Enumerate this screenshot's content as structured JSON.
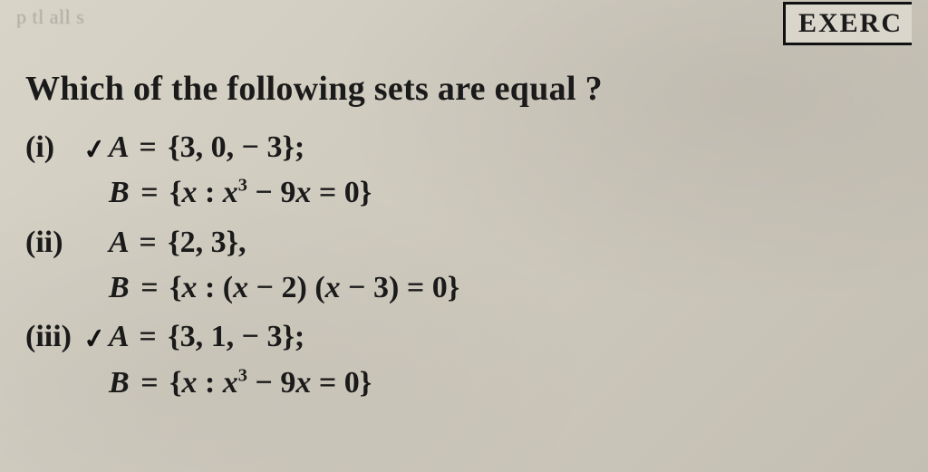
{
  "page": {
    "background_colors": [
      "#d8d4c8",
      "#cec9bd",
      "#c4bfb3"
    ],
    "text_color": "#1a1a1a",
    "font_family": "Times New Roman, serif"
  },
  "faint_top_text": "p tl all s",
  "header_box": {
    "text": "EXERC",
    "border_color": "#111111",
    "font_weight": 700
  },
  "question": "Which of the following sets are equal ?",
  "items": [
    {
      "roman": "(i)",
      "checked": true,
      "line1_prefix": "A",
      "line1_eq": "=",
      "line1_set": "{3, 0, − 3}",
      "line1_terminator": ";",
      "line2_prefix": "B",
      "line2_eq": "=",
      "line2_set_open": "{",
      "line2_var": "x",
      "line2_colon": " : ",
      "line2_expr_left": "x",
      "line2_sup": "3",
      "line2_expr_mid": " − 9",
      "line2_expr_var2": "x",
      "line2_expr_eq": " = 0",
      "line2_set_close": "}"
    },
    {
      "roman": "(ii)",
      "checked": false,
      "line1_prefix": "A",
      "line1_eq": "=",
      "line1_set": "{2, 3}",
      "line1_terminator": ",",
      "line2_prefix": "B",
      "line2_eq": "=",
      "line2_set_open": "{",
      "line2_var": "x",
      "line2_colon": " : (",
      "line2_expr_left": "x",
      "line2_sup": "",
      "line2_expr_mid": " − 2) (",
      "line2_expr_var2": "x",
      "line2_expr_eq": " − 3) = 0",
      "line2_set_close": "}"
    },
    {
      "roman": "(iii)",
      "checked": true,
      "line1_prefix": "A",
      "line1_eq": "=",
      "line1_set": "{3, 1, − 3}",
      "line1_terminator": ";",
      "line2_prefix": "B",
      "line2_eq": "=",
      "line2_set_open": "{",
      "line2_var": "x",
      "line2_colon": " : ",
      "line2_expr_left": "x",
      "line2_sup": "3",
      "line2_expr_mid": " − 9",
      "line2_expr_var2": "x",
      "line2_expr_eq": " = 0",
      "line2_set_close": "}"
    }
  ]
}
